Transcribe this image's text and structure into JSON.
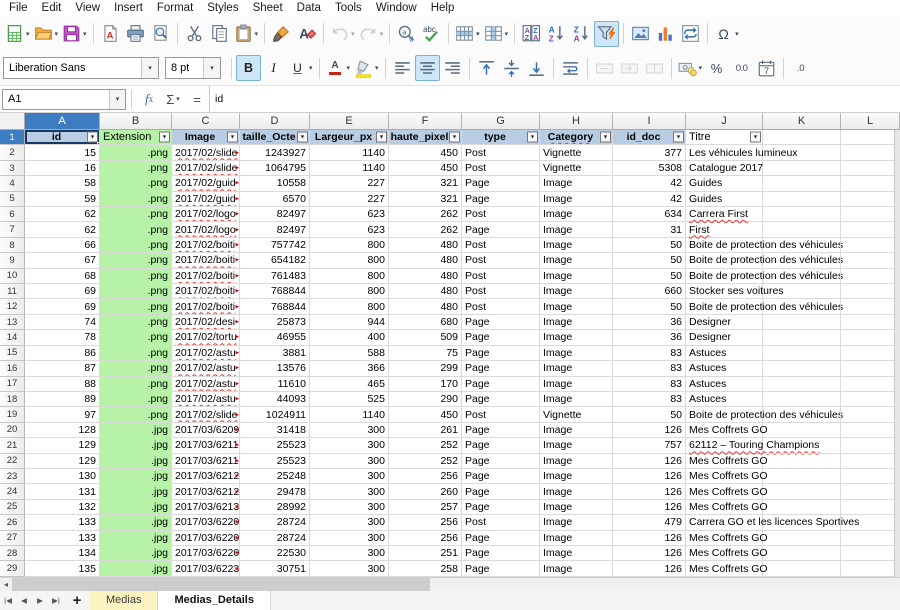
{
  "menu": {
    "items": [
      "File",
      "Edit",
      "View",
      "Insert",
      "Format",
      "Styles",
      "Sheet",
      "Data",
      "Tools",
      "Window",
      "Help"
    ]
  },
  "toolbar_main": {
    "items": [
      {
        "name": "new-button",
        "icon": "new-spreadsheet-icon",
        "dropdown": true
      },
      {
        "name": "open-button",
        "icon": "open-folder-icon",
        "dropdown": true
      },
      {
        "name": "save-button",
        "icon": "save-icon",
        "dropdown": true
      },
      {
        "type": "sep"
      },
      {
        "name": "export-pdf-button",
        "icon": "pdf-icon"
      },
      {
        "name": "print-button",
        "icon": "printer-icon"
      },
      {
        "name": "print-preview-button",
        "icon": "print-preview-icon"
      },
      {
        "type": "sep"
      },
      {
        "name": "cut-button",
        "icon": "scissors-icon"
      },
      {
        "name": "copy-button",
        "icon": "copy-icon"
      },
      {
        "name": "paste-button",
        "icon": "clipboard-icon",
        "dropdown": true
      },
      {
        "type": "sep"
      },
      {
        "name": "clone-formatting-button",
        "icon": "paintbrush-icon"
      },
      {
        "name": "clear-formatting-button",
        "icon": "clear-formatting-icon"
      },
      {
        "type": "sep"
      },
      {
        "name": "undo-button",
        "icon": "undo-icon",
        "dropdown": true,
        "disabled": true
      },
      {
        "name": "redo-button",
        "icon": "redo-icon",
        "dropdown": true,
        "disabled": true
      },
      {
        "type": "sep"
      },
      {
        "name": "find-replace-button",
        "icon": "find-replace-icon"
      },
      {
        "name": "spelling-button",
        "icon": "spelling-icon"
      },
      {
        "type": "sep"
      },
      {
        "name": "row-button",
        "icon": "row-icon",
        "dropdown": true
      },
      {
        "name": "column-button",
        "icon": "column-icon",
        "dropdown": true
      },
      {
        "type": "sep"
      },
      {
        "name": "sort-button",
        "icon": "sort-icon"
      },
      {
        "name": "sort-ascending-button",
        "icon": "sort-asc-icon"
      },
      {
        "name": "sort-descending-button",
        "icon": "sort-desc-icon"
      },
      {
        "name": "autofilter-button",
        "icon": "autofilter-icon",
        "active": true
      },
      {
        "type": "sep"
      },
      {
        "name": "insert-image-button",
        "icon": "image-icon"
      },
      {
        "name": "insert-chart-button",
        "icon": "chart-icon"
      },
      {
        "name": "pivot-table-button",
        "icon": "pivot-table-icon"
      },
      {
        "type": "sep"
      },
      {
        "name": "special-character-button",
        "icon": "omega-icon",
        "dropdown": true
      }
    ]
  },
  "toolbar_format": {
    "items": [
      {
        "type": "combo",
        "name": "font-name-select",
        "value": "Liberation Sans",
        "width": 156
      },
      {
        "type": "combo",
        "name": "font-size-select",
        "value": "8 pt",
        "width": 56
      },
      {
        "type": "sep"
      },
      {
        "name": "bold-button",
        "icon": "bold-icon",
        "active": true
      },
      {
        "name": "italic-button",
        "icon": "italic-icon"
      },
      {
        "name": "underline-button",
        "icon": "underline-icon",
        "dropdown": true
      },
      {
        "type": "sep"
      },
      {
        "name": "font-color-button",
        "icon": "font-color-icon",
        "dropdown": true
      },
      {
        "name": "highlight-color-button",
        "icon": "highlight-icon",
        "dropdown": true
      },
      {
        "type": "sep"
      },
      {
        "name": "align-left-button",
        "icon": "align-left-icon"
      },
      {
        "name": "align-center-button",
        "icon": "align-center-icon",
        "active": true
      },
      {
        "name": "align-right-button",
        "icon": "align-right-icon"
      },
      {
        "type": "sep"
      },
      {
        "name": "align-top-button",
        "icon": "align-top-icon"
      },
      {
        "name": "center-vertically-button",
        "icon": "center-vertical-icon"
      },
      {
        "name": "align-bottom-button",
        "icon": "align-bottom-icon"
      },
      {
        "type": "sep"
      },
      {
        "name": "wrap-text-button",
        "icon": "wrap-text-icon"
      },
      {
        "type": "sep"
      },
      {
        "name": "merge-cells-button",
        "icon": "merge-cells-icon",
        "disabled": true
      },
      {
        "name": "merge-center-button",
        "icon": "merge-center-icon",
        "disabled": true
      },
      {
        "name": "unmerge-button",
        "icon": "unmerge-icon",
        "disabled": true
      },
      {
        "type": "sep"
      },
      {
        "name": "currency-button",
        "icon": "currency-icon",
        "dropdown": true
      },
      {
        "name": "percent-button",
        "icon": "percent-icon"
      },
      {
        "name": "number-format-button",
        "icon": "number-icon"
      },
      {
        "name": "date-format-button",
        "icon": "date-icon"
      },
      {
        "type": "sep"
      },
      {
        "name": "add-decimal-button",
        "icon": "add-decimal-icon"
      }
    ]
  },
  "formula_bar": {
    "cell_ref": "A1",
    "content": "id"
  },
  "grid": {
    "col_letters": [
      "A",
      "B",
      "C",
      "D",
      "E",
      "F",
      "G",
      "H",
      "I",
      "J",
      "K",
      "L"
    ],
    "selected_column": "A",
    "selected_row": 1,
    "header_cells": [
      {
        "label": "id",
        "style": "blue",
        "filter": true
      },
      {
        "label": "Extension",
        "style": "greenh",
        "filter": true
      },
      {
        "label": "Image",
        "style": "blue",
        "filter": true
      },
      {
        "label": "taille_Octe",
        "style": "blue",
        "filter": true
      },
      {
        "label": "Largeur_px",
        "style": "blue",
        "filter": true
      },
      {
        "label": "haute_pixel",
        "style": "blue",
        "filter": true
      },
      {
        "label": "type",
        "style": "blue",
        "filter": true
      },
      {
        "label": "Category",
        "style": "blue",
        "filter": true,
        "squiggle": true
      },
      {
        "label": "id_doc",
        "style": "blue",
        "filter": true
      },
      {
        "label": "Titre",
        "style": "plain",
        "filter": true
      }
    ],
    "row_fields": [
      "id",
      "Extension",
      "Image",
      "taille_Octe",
      "Largeur_px",
      "haute_pixel",
      "type",
      "Category",
      "id_doc",
      "Titre"
    ],
    "rows": [
      [
        15,
        ".png",
        "2017/02/slide",
        1243927,
        1140,
        450,
        "Post",
        "Vignette",
        377,
        "Les véhicules lumineux"
      ],
      [
        16,
        ".png",
        "2017/02/slide",
        1064795,
        1140,
        450,
        "Post",
        "Vignette",
        5308,
        "Catalogue 2017"
      ],
      [
        58,
        ".png",
        "2017/02/guid",
        10558,
        227,
        321,
        "Page",
        "Image",
        42,
        "Guides"
      ],
      [
        59,
        ".png",
        "2017/02/guid",
        6570,
        227,
        321,
        "Page",
        "Image",
        42,
        "Guides"
      ],
      [
        62,
        ".png",
        "2017/02/logo",
        82497,
        623,
        262,
        "Post",
        "Image",
        634,
        "Carrera First"
      ],
      [
        62,
        ".png",
        "2017/02/logo",
        82497,
        623,
        262,
        "Page",
        "Image",
        31,
        "First"
      ],
      [
        66,
        ".png",
        "2017/02/boiti",
        757742,
        800,
        480,
        "Post",
        "Image",
        50,
        "Boite de protection des véhicules"
      ],
      [
        67,
        ".png",
        "2017/02/boiti",
        654182,
        800,
        480,
        "Post",
        "Image",
        50,
        "Boite de protection des véhicules"
      ],
      [
        68,
        ".png",
        "2017/02/boiti",
        761483,
        800,
        480,
        "Post",
        "Image",
        50,
        "Boite de protection des véhicules"
      ],
      [
        69,
        ".png",
        "2017/02/boiti",
        768844,
        800,
        480,
        "Post",
        "Image",
        660,
        "Stocker ses voitures"
      ],
      [
        69,
        ".png",
        "2017/02/boiti",
        768844,
        800,
        480,
        "Post",
        "Image",
        50,
        "Boite de protection des véhicules"
      ],
      [
        74,
        ".png",
        "2017/02/desi",
        25873,
        944,
        680,
        "Page",
        "Image",
        36,
        "Designer"
      ],
      [
        78,
        ".png",
        "2017/02/tortu",
        46955,
        400,
        509,
        "Page",
        "Image",
        36,
        "Designer"
      ],
      [
        86,
        ".png",
        "2017/02/astu",
        3881,
        588,
        75,
        "Page",
        "Image",
        83,
        "Astuces"
      ],
      [
        87,
        ".png",
        "2017/02/astu",
        13576,
        366,
        299,
        "Page",
        "Image",
        83,
        "Astuces"
      ],
      [
        88,
        ".png",
        "2017/02/astu",
        11610,
        465,
        170,
        "Page",
        "Image",
        83,
        "Astuces"
      ],
      [
        89,
        ".png",
        "2017/02/astu",
        44093,
        525,
        290,
        "Page",
        "Image",
        83,
        "Astuces"
      ],
      [
        97,
        ".png",
        "2017/02/slide",
        1024911,
        1140,
        450,
        "Post",
        "Vignette",
        50,
        "Boite de protection des véhicules"
      ],
      [
        128,
        ".jpg",
        "2017/03/6209",
        31418,
        300,
        261,
        "Page",
        "Image",
        126,
        "Mes Coffrets GO"
      ],
      [
        129,
        ".jpg",
        "2017/03/6211",
        25523,
        300,
        252,
        "Page",
        "Image",
        757,
        "62112 – Touring Champions"
      ],
      [
        129,
        ".jpg",
        "2017/03/6211",
        25523,
        300,
        252,
        "Page",
        "Image",
        126,
        "Mes Coffrets GO"
      ],
      [
        130,
        ".jpg",
        "2017/03/6212",
        25248,
        300,
        256,
        "Page",
        "Image",
        126,
        "Mes Coffrets GO"
      ],
      [
        131,
        ".jpg",
        "2017/03/6212",
        29478,
        300,
        260,
        "Page",
        "Image",
        126,
        "Mes Coffrets GO"
      ],
      [
        132,
        ".jpg",
        "2017/03/6213",
        28992,
        300,
        257,
        "Page",
        "Image",
        126,
        "Mes Coffrets GO"
      ],
      [
        133,
        ".jpg",
        "2017/03/6220",
        28724,
        300,
        256,
        "Post",
        "Image",
        479,
        "Carrera GO et les licences Sportives"
      ],
      [
        133,
        ".jpg",
        "2017/03/6220",
        28724,
        300,
        256,
        "Page",
        "Image",
        126,
        "Mes Coffrets GO"
      ],
      [
        134,
        ".jpg",
        "2017/03/6220",
        22530,
        300,
        251,
        "Page",
        "Image",
        126,
        "Mes Coffrets GO"
      ],
      [
        135,
        ".jpg",
        "2017/03/6223",
        30751,
        300,
        258,
        "Page",
        "Image",
        126,
        "Mes Coffrets GO"
      ]
    ],
    "image_spell_rows": [
      2,
      3,
      4,
      5,
      6,
      7,
      8,
      9,
      10,
      11,
      12,
      13,
      14,
      15,
      16,
      17,
      18,
      19
    ],
    "title_spell_rows": [
      6,
      7,
      21
    ]
  },
  "sheet_tabs": {
    "tabs": [
      {
        "label": "Medias",
        "active": false,
        "color": "yellow"
      },
      {
        "label": "Medias_Details",
        "active": true,
        "color": "white"
      }
    ]
  },
  "colors": {
    "header_blue": "#b8cce4",
    "extension_green": "#b7f3a6",
    "selection_border": "#17375e",
    "active_button_bg": "#cde7f8",
    "tab_yellow": "#fbf3c0",
    "selected_header": "#3e7cc1"
  }
}
